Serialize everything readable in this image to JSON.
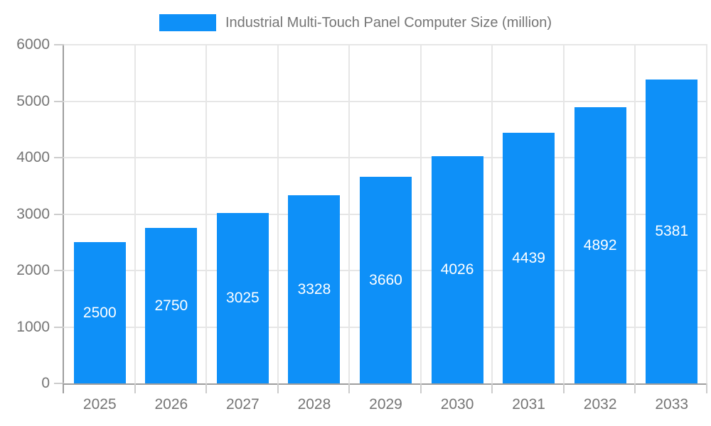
{
  "chart_data": {
    "type": "bar",
    "title": "Industrial Multi-Touch Panel Computer Size (million)",
    "legend_entries": [
      "Industrial Multi-Touch Panel Computer Size (million)"
    ],
    "legend_position": "top-center",
    "categories": [
      "2025",
      "2026",
      "2027",
      "2028",
      "2029",
      "2030",
      "2031",
      "2032",
      "2033"
    ],
    "values": [
      2500,
      2750,
      3025,
      3328,
      3660,
      4026,
      4439,
      4892,
      5381
    ],
    "yticks": [
      0,
      1000,
      2000,
      3000,
      4000,
      5000,
      6000
    ],
    "ylim": [
      0,
      6000
    ],
    "xlabel": "",
    "ylabel": "",
    "grid": "horizontal and vertical light gray gridlines, framed right edge",
    "bar_label_position": "inside-center"
  },
  "colors": {
    "bar": "#0e90f8",
    "grid": "#e6e6e6",
    "axis": "#9e9e9e",
    "tick": "#cccccc",
    "text": "#757575",
    "bar_label": "#ffffff",
    "background": "#ffffff"
  }
}
